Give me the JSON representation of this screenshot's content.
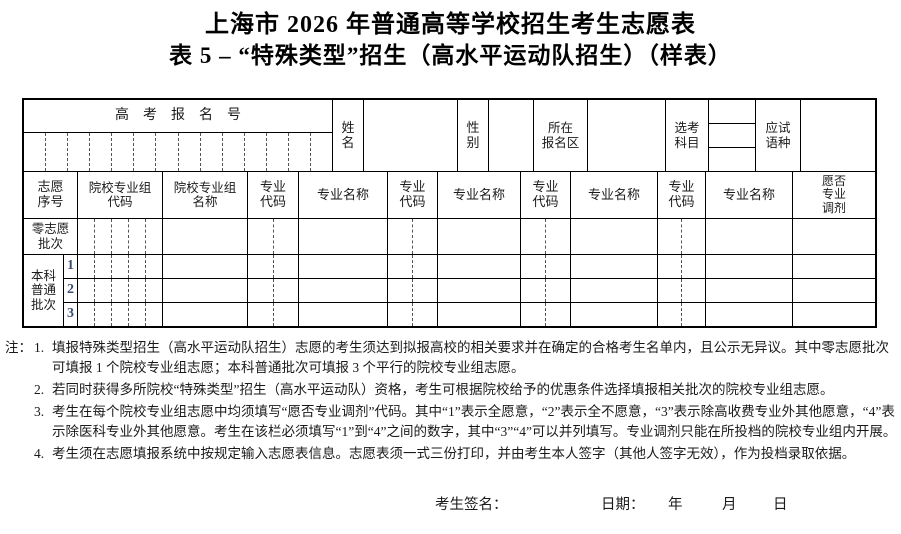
{
  "title": {
    "line1": "上海市 2026 年普通高等学校招生考生志愿表",
    "line2": "表 5 – “特殊类型”招生（高水平运动队招生）（样表）"
  },
  "colors": {
    "background": "#ffffff",
    "ink": "#1a1a1a",
    "border": "#000000",
    "row_number_ink": "#3c4e74"
  },
  "header": {
    "exam_no_label": "高　考　报　名　号",
    "exam_no_digit_boxes": 14,
    "name_label": "姓名",
    "name_value": "",
    "gender_label": "性别",
    "gender_value": "",
    "region_line1": "所在",
    "region_line2": "报名区",
    "region_value": "",
    "subjects_line1": "选考",
    "subjects_line2": "科目",
    "subjects_values": [
      "",
      "",
      ""
    ],
    "language_line1": "应试",
    "language_line2": "语种",
    "language_value": ""
  },
  "columns": {
    "seq_line1": "志愿",
    "seq_line2": "序号",
    "group_code_line1": "院校专业组",
    "group_code_line2": "代码",
    "group_name_line1": "院校专业组",
    "group_name_line2": "名称",
    "major_code_line1": "专业",
    "major_code_line2": "代码",
    "major_name": "专业名称",
    "adjust_line1": "愿否",
    "adjust_line2": "专业",
    "adjust_line3": "调剂"
  },
  "rows": {
    "zero_batch_line1": "零志愿",
    "zero_batch_line2": "批次",
    "benke_line1": "本科",
    "benke_line2": "普通",
    "benke_line3": "批次",
    "numbers": [
      "1",
      "2",
      "3"
    ]
  },
  "notes": {
    "prefix": "注：",
    "items": [
      {
        "num": "1.",
        "text": "填报特殊类型招生（高水平运动队招生）志愿的考生须达到拟报高校的相关要求并在确定的合格考生名单内，且公示无异议。其中零志愿批次可填报 1 个院校专业组志愿；本科普通批次可填报 3 个平行的院校专业组志愿。"
      },
      {
        "num": "2.",
        "text": "若同时获得多所院校“特殊类型”招生（高水平运动队）资格，考生可根据院校给予的优惠条件选择填报相关批次的院校专业组志愿。"
      },
      {
        "num": "3.",
        "text": "考生在每个院校专业组志愿中均须填写“愿否专业调剂”代码。其中“1”表示全愿意，“2”表示全不愿意，“3”表示除高收费专业外其他愿意，“4”表示除医科专业外其他愿意。考生在该栏必须填写“1”到“4”之间的数字，其中“3”“4”可以并列填写。专业调剂只能在所投档的院校专业组内开展。"
      },
      {
        "num": "4.",
        "text": "考生须在志愿填报系统中按规定输入志愿表信息。志愿表须一式三份打印，并由考生本人签字（其他人签字无效），作为投档录取依据。"
      }
    ]
  },
  "footer": {
    "signature_label": "考生签名：",
    "date_label": "日期：",
    "year_label": "年",
    "month_label": "月",
    "day_label": "日"
  }
}
